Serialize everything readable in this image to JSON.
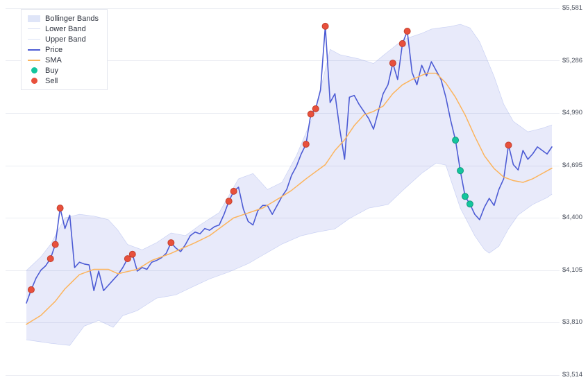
{
  "chart_data": {
    "type": "line",
    "title": "",
    "xlabel": "",
    "ylabel": "",
    "n_points": 110,
    "y_range": [
      3514,
      5581
    ],
    "grid": "horizontal",
    "legend_position": "top-left",
    "y_ticks": {
      "labels": [
        "$5,581",
        "$5,286",
        "$4,990",
        "$4,695",
        "$4,400",
        "$4,105",
        "$3,810",
        "$3,514"
      ],
      "values": [
        5581,
        5286,
        4990,
        4695,
        4400,
        4105,
        3810,
        3514
      ]
    },
    "series": {
      "price": [
        3920,
        3995,
        4060,
        4105,
        4130,
        4170,
        4250,
        4455,
        4340,
        4415,
        4120,
        4150,
        4140,
        4135,
        3990,
        4100,
        3990,
        4020,
        4050,
        4080,
        4120,
        4170,
        4195,
        4100,
        4120,
        4110,
        4150,
        4160,
        4175,
        4200,
        4260,
        4230,
        4210,
        4250,
        4300,
        4320,
        4310,
        4340,
        4330,
        4350,
        4360,
        4420,
        4494,
        4550,
        4573,
        4450,
        4380,
        4360,
        4440,
        4470,
        4470,
        4420,
        4470,
        4520,
        4560,
        4640,
        4690,
        4760,
        4815,
        4985,
        5015,
        5120,
        5480,
        5050,
        5100,
        4900,
        4730,
        5080,
        5090,
        5040,
        5000,
        4960,
        4900,
        5000,
        5100,
        5150,
        5272,
        5180,
        5382,
        5452,
        5220,
        5150,
        5260,
        5200,
        5280,
        5230,
        5180,
        5080,
        4950,
        4838,
        4666,
        4521,
        4478,
        4420,
        4390,
        4460,
        4510,
        4470,
        4560,
        4620,
        4810,
        4700,
        4670,
        4780,
        4730,
        4760,
        4800,
        4780,
        4760,
        4800
      ],
      "sma_anchors": [
        [
          0,
          3800
        ],
        [
          3,
          3850
        ],
        [
          6,
          3930
        ],
        [
          8,
          4000
        ],
        [
          11,
          4080
        ],
        [
          14,
          4110
        ],
        [
          17,
          4110
        ],
        [
          19,
          4085
        ],
        [
          23,
          4110
        ],
        [
          26,
          4160
        ],
        [
          30,
          4200
        ],
        [
          35,
          4260
        ],
        [
          38,
          4300
        ],
        [
          43,
          4400
        ],
        [
          49,
          4455
        ],
        [
          53,
          4520
        ],
        [
          55,
          4555
        ],
        [
          58,
          4620
        ],
        [
          62,
          4700
        ],
        [
          64,
          4780
        ],
        [
          66,
          4840
        ],
        [
          68,
          4920
        ],
        [
          70,
          4980
        ],
        [
          72,
          5000
        ],
        [
          74,
          5030
        ],
        [
          76,
          5100
        ],
        [
          78,
          5150
        ],
        [
          80,
          5180
        ],
        [
          83,
          5215
        ],
        [
          85,
          5215
        ],
        [
          87,
          5160
        ],
        [
          89,
          5080
        ],
        [
          91,
          4980
        ],
        [
          93,
          4860
        ],
        [
          95,
          4750
        ],
        [
          97,
          4678
        ],
        [
          99,
          4630
        ],
        [
          101,
          4610
        ],
        [
          103,
          4600
        ],
        [
          105,
          4620
        ],
        [
          107,
          4650
        ],
        [
          109,
          4680
        ]
      ],
      "upper_band_anchors": [
        [
          0,
          4103
        ],
        [
          3,
          4180
        ],
        [
          5,
          4250
        ],
        [
          8,
          4400
        ],
        [
          11,
          4420
        ],
        [
          14,
          4410
        ],
        [
          17,
          4390
        ],
        [
          19,
          4330
        ],
        [
          21,
          4250
        ],
        [
          24,
          4220
        ],
        [
          27,
          4260
        ],
        [
          30,
          4315
        ],
        [
          33,
          4300
        ],
        [
          36,
          4360
        ],
        [
          40,
          4430
        ],
        [
          44,
          4620
        ],
        [
          47,
          4650
        ],
        [
          50,
          4560
        ],
        [
          53,
          4600
        ],
        [
          56,
          4750
        ],
        [
          60,
          5010
        ],
        [
          63,
          5350
        ],
        [
          65,
          5320
        ],
        [
          69,
          5296
        ],
        [
          72,
          5270
        ],
        [
          74,
          5315
        ],
        [
          77,
          5380
        ],
        [
          79,
          5413
        ],
        [
          82,
          5440
        ],
        [
          84,
          5464
        ],
        [
          88,
          5479
        ],
        [
          90,
          5491
        ],
        [
          92,
          5471
        ],
        [
          94,
          5393
        ],
        [
          97,
          5198
        ],
        [
          99,
          5041
        ],
        [
          101,
          4944
        ],
        [
          104,
          4885
        ],
        [
          107,
          4905
        ],
        [
          109,
          4924
        ]
      ],
      "lower_band_anchors": [
        [
          0,
          3713
        ],
        [
          5,
          3693
        ],
        [
          9,
          3681
        ],
        [
          12,
          3790
        ],
        [
          15,
          3822
        ],
        [
          18,
          3783
        ],
        [
          20,
          3849
        ],
        [
          23,
          3877
        ],
        [
          27,
          3947
        ],
        [
          31,
          3966
        ],
        [
          34,
          4005
        ],
        [
          38,
          4056
        ],
        [
          42,
          4095
        ],
        [
          46,
          4142
        ],
        [
          49,
          4189
        ],
        [
          53,
          4252
        ],
        [
          57,
          4299
        ],
        [
          60,
          4318
        ],
        [
          64,
          4338
        ],
        [
          67,
          4396
        ],
        [
          71,
          4455
        ],
        [
          75,
          4475
        ],
        [
          78,
          4553
        ],
        [
          82,
          4651
        ],
        [
          85,
          4709
        ],
        [
          87,
          4697
        ],
        [
          90,
          4455
        ],
        [
          93,
          4299
        ],
        [
          95,
          4221
        ],
        [
          96,
          4201
        ],
        [
          98,
          4240
        ],
        [
          100,
          4338
        ],
        [
          102,
          4416
        ],
        [
          105,
          4475
        ],
        [
          108,
          4514
        ],
        [
          109,
          4533
        ]
      ]
    },
    "signals": {
      "buy_indices": [
        89,
        90,
        91,
        92
      ],
      "sell_indices": [
        1,
        5,
        6,
        7,
        21,
        22,
        30,
        42,
        43,
        58,
        59,
        60,
        62,
        76,
        78,
        79,
        100
      ]
    },
    "colors": {
      "price": "#4c5bd4",
      "sma": "#fcb45c",
      "buy": "#13c59d",
      "sell": "#e8503c",
      "band_fill": "rgba(76,94,213,0.13)",
      "band_line": "rgba(125,145,225,0.35)",
      "grid": "#eaecf2",
      "tick_text": "#454b58"
    }
  },
  "legend": {
    "items": [
      {
        "label": "Bollinger Bands",
        "swatch": "fill",
        "color": "#dfe5f8"
      },
      {
        "label": "Lower Band",
        "swatch": "thinline",
        "color": "#d9e0f5"
      },
      {
        "label": "Upper Band",
        "swatch": "thinline",
        "color": "#d9e0f5"
      },
      {
        "label": "Price",
        "swatch": "line",
        "color": "#4c5bd4"
      },
      {
        "label": "SMA",
        "swatch": "line",
        "color": "#fcb45c"
      },
      {
        "label": "Buy",
        "swatch": "dot",
        "color": "#13c59d"
      },
      {
        "label": "Sell",
        "swatch": "dot",
        "color": "#e8503c"
      }
    ]
  }
}
